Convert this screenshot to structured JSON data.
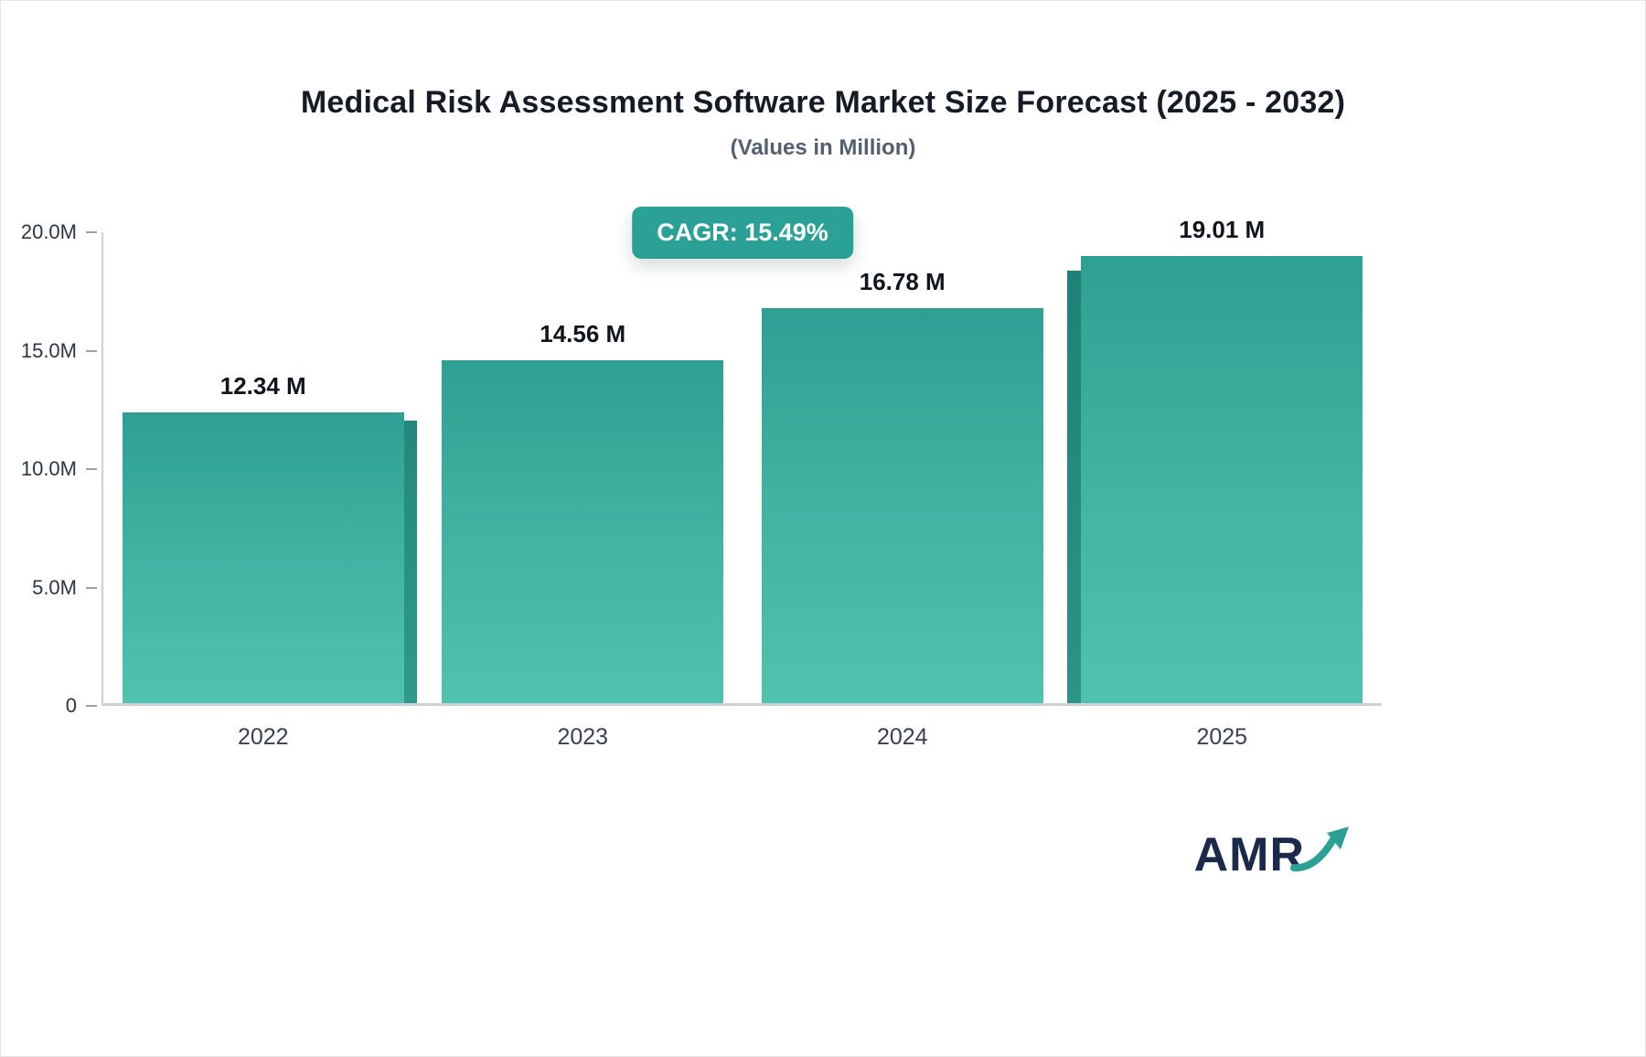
{
  "header": {
    "title": "Medical Risk Assessment Software Market Size Forecast (2025 - 2032)",
    "subtitle": "(Values in Million)"
  },
  "badge": {
    "label": "CAGR: 15.49%"
  },
  "chart_data": {
    "type": "bar",
    "title": "Medical Risk Assessment Software Market Size Forecast (2025 - 2032)",
    "subtitle": "(Values in Million)",
    "categories": [
      "2022",
      "2023",
      "2024",
      "2025"
    ],
    "values": [
      12.34,
      14.56,
      16.78,
      19.01
    ],
    "value_labels": [
      "12.34 M",
      "14.56 M",
      "16.78 M",
      "19.01 M"
    ],
    "xlabel": "",
    "ylabel": "",
    "ylim": [
      0,
      20
    ],
    "yticks": [
      {
        "value": 0,
        "label": "0"
      },
      {
        "value": 5,
        "label": "5.0M"
      },
      {
        "value": 10,
        "label": "10.0M"
      },
      {
        "value": 15,
        "label": "15.0M"
      },
      {
        "value": 20,
        "label": "20.0M"
      }
    ],
    "grid": false,
    "legend_position": "none",
    "annotations": [
      "CAGR: 15.49%"
    ]
  },
  "colors": {
    "accent": "#2BA094",
    "bar_gradient_top": "#2E9F92",
    "bar_gradient_bottom": "#50C2AD",
    "bar_side_shadow": "#1F8176",
    "axis_line": "#CCD1D7",
    "title_text": "#151C26",
    "subtitle_text": "#53606F",
    "logo_text": "#1B2A4A"
  },
  "logo": {
    "text": "AMR",
    "icon": "trend-arrow-icon"
  }
}
